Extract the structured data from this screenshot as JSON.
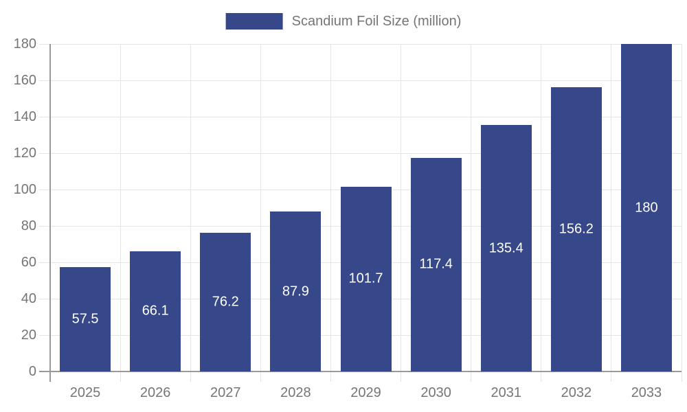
{
  "legend": {
    "label": "Scandium Foil Size (million)"
  },
  "colors": {
    "bar": "#364889",
    "grid": "#e4e4e4",
    "axis": "#999999",
    "tick_text": "#757575",
    "value_label": "#ffffff"
  },
  "chart_data": {
    "type": "bar",
    "title": "Scandium Foil Size (million)",
    "categories": [
      "2025",
      "2026",
      "2027",
      "2028",
      "2029",
      "2030",
      "2031",
      "2032",
      "2033"
    ],
    "series": [
      {
        "name": "Scandium Foil Size (million)",
        "values": [
          57.5,
          66.1,
          76.2,
          87.9,
          101.7,
          117.4,
          135.4,
          156.2,
          180
        ]
      }
    ],
    "value_labels": [
      "57.5",
      "66.1",
      "76.2",
      "87.9",
      "101.7",
      "117.4",
      "135.4",
      "156.2",
      "180"
    ],
    "xlabel": "",
    "ylabel": "",
    "ylim": [
      0,
      180
    ],
    "yticks": [
      0,
      20,
      40,
      60,
      80,
      100,
      120,
      140,
      160,
      180
    ],
    "grid": true,
    "legend_position": "top-center",
    "bar_color": "#364889"
  }
}
